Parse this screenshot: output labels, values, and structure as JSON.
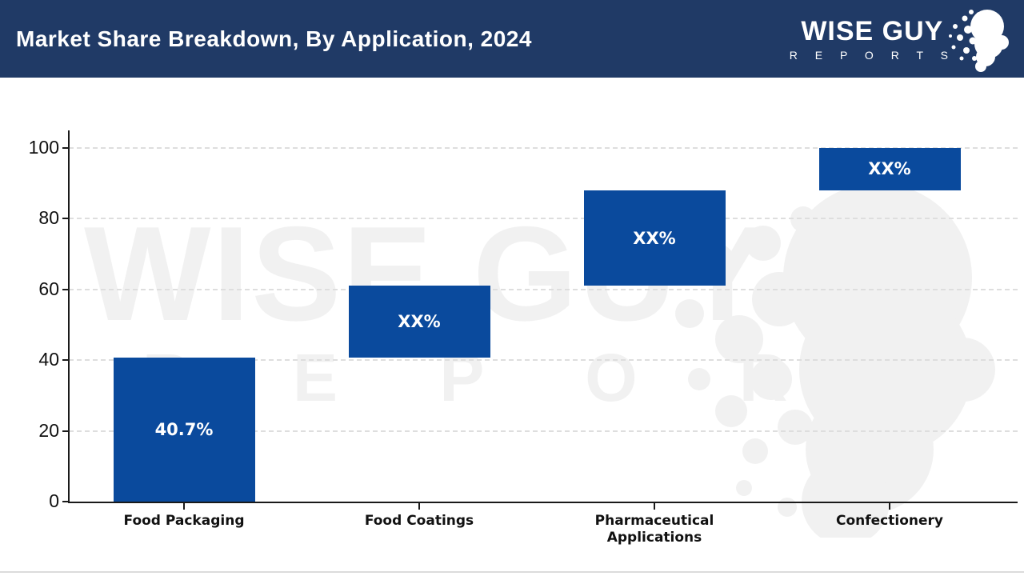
{
  "header": {
    "title": "Market Share Breakdown, By Application, 2024",
    "logo": {
      "line1": "WISE GUY",
      "line2": "R E P O R T S"
    }
  },
  "watermark": {
    "line1": "WISE GUY",
    "line2": "R E P O R T S"
  },
  "colors": {
    "header_bg": "#203a66",
    "bar": "#0a4a9d",
    "grid": "#dedede",
    "axis": "#1a1a1a",
    "watermark": "#f1f1f1",
    "bar_label": "#ffffff"
  },
  "chart_data": {
    "type": "bar",
    "subtype": "waterfall",
    "title": "Market Share Breakdown, By Application, 2024",
    "xlabel": "",
    "ylabel": "",
    "categories": [
      "Food Packaging",
      "Food Coatings",
      "Pharmaceutical Applications",
      "Confectionery"
    ],
    "segments": [
      {
        "category": "Food Packaging",
        "start": 0,
        "end": 40.7,
        "label": "40.7%"
      },
      {
        "category": "Food Coatings",
        "start": 40.7,
        "end": 61.0,
        "label": "XX%"
      },
      {
        "category": "Pharmaceutical Applications",
        "start": 61.0,
        "end": 87.8,
        "label": "XX%"
      },
      {
        "category": "Confectionery",
        "start": 87.8,
        "end": 100.0,
        "label": "XX%"
      }
    ],
    "yticks": [
      0,
      20,
      40,
      60,
      80,
      100
    ],
    "ylim": [
      0,
      105
    ],
    "grid": "horizontal-dashed",
    "legend": "none"
  }
}
